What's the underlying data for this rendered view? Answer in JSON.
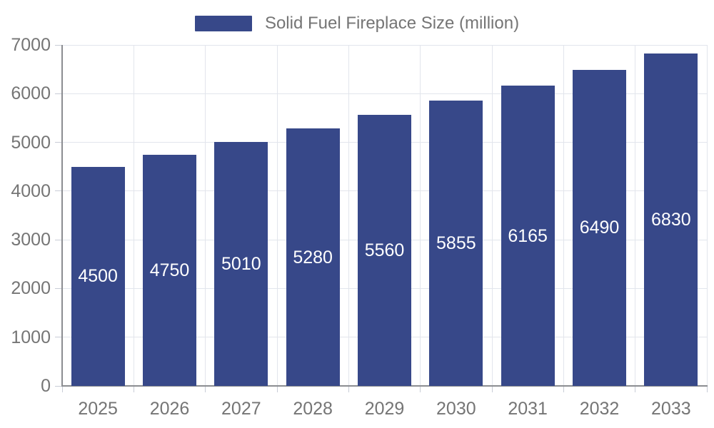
{
  "chart": {
    "legend": {
      "label": "Solid Fuel Fireplace Size (million)"
    },
    "colors": {
      "bar": "#374889",
      "grid": "#e2e5ec",
      "tick": "#c8ccd6",
      "axis": "#8b8d91",
      "text": "#757575",
      "value_label": "#ffffff",
      "background": "#ffffff"
    }
  },
  "chart_data": {
    "type": "bar",
    "categories": [
      "2025",
      "2026",
      "2027",
      "2028",
      "2029",
      "2030",
      "2031",
      "2032",
      "2033"
    ],
    "values": [
      4500,
      4750,
      5010,
      5280,
      5560,
      5855,
      6165,
      6490,
      6830
    ],
    "title": "Solid Fuel Fireplace Size (million)",
    "xlabel": "",
    "ylabel": "",
    "ylim": [
      0,
      7000
    ],
    "ytick_interval": 1000,
    "ytick_labels": [
      "0",
      "1000",
      "2000",
      "3000",
      "4000",
      "5000",
      "6000",
      "7000"
    ],
    "legend_position": "top-center",
    "grid": true,
    "value_label_position": "inside-center"
  }
}
